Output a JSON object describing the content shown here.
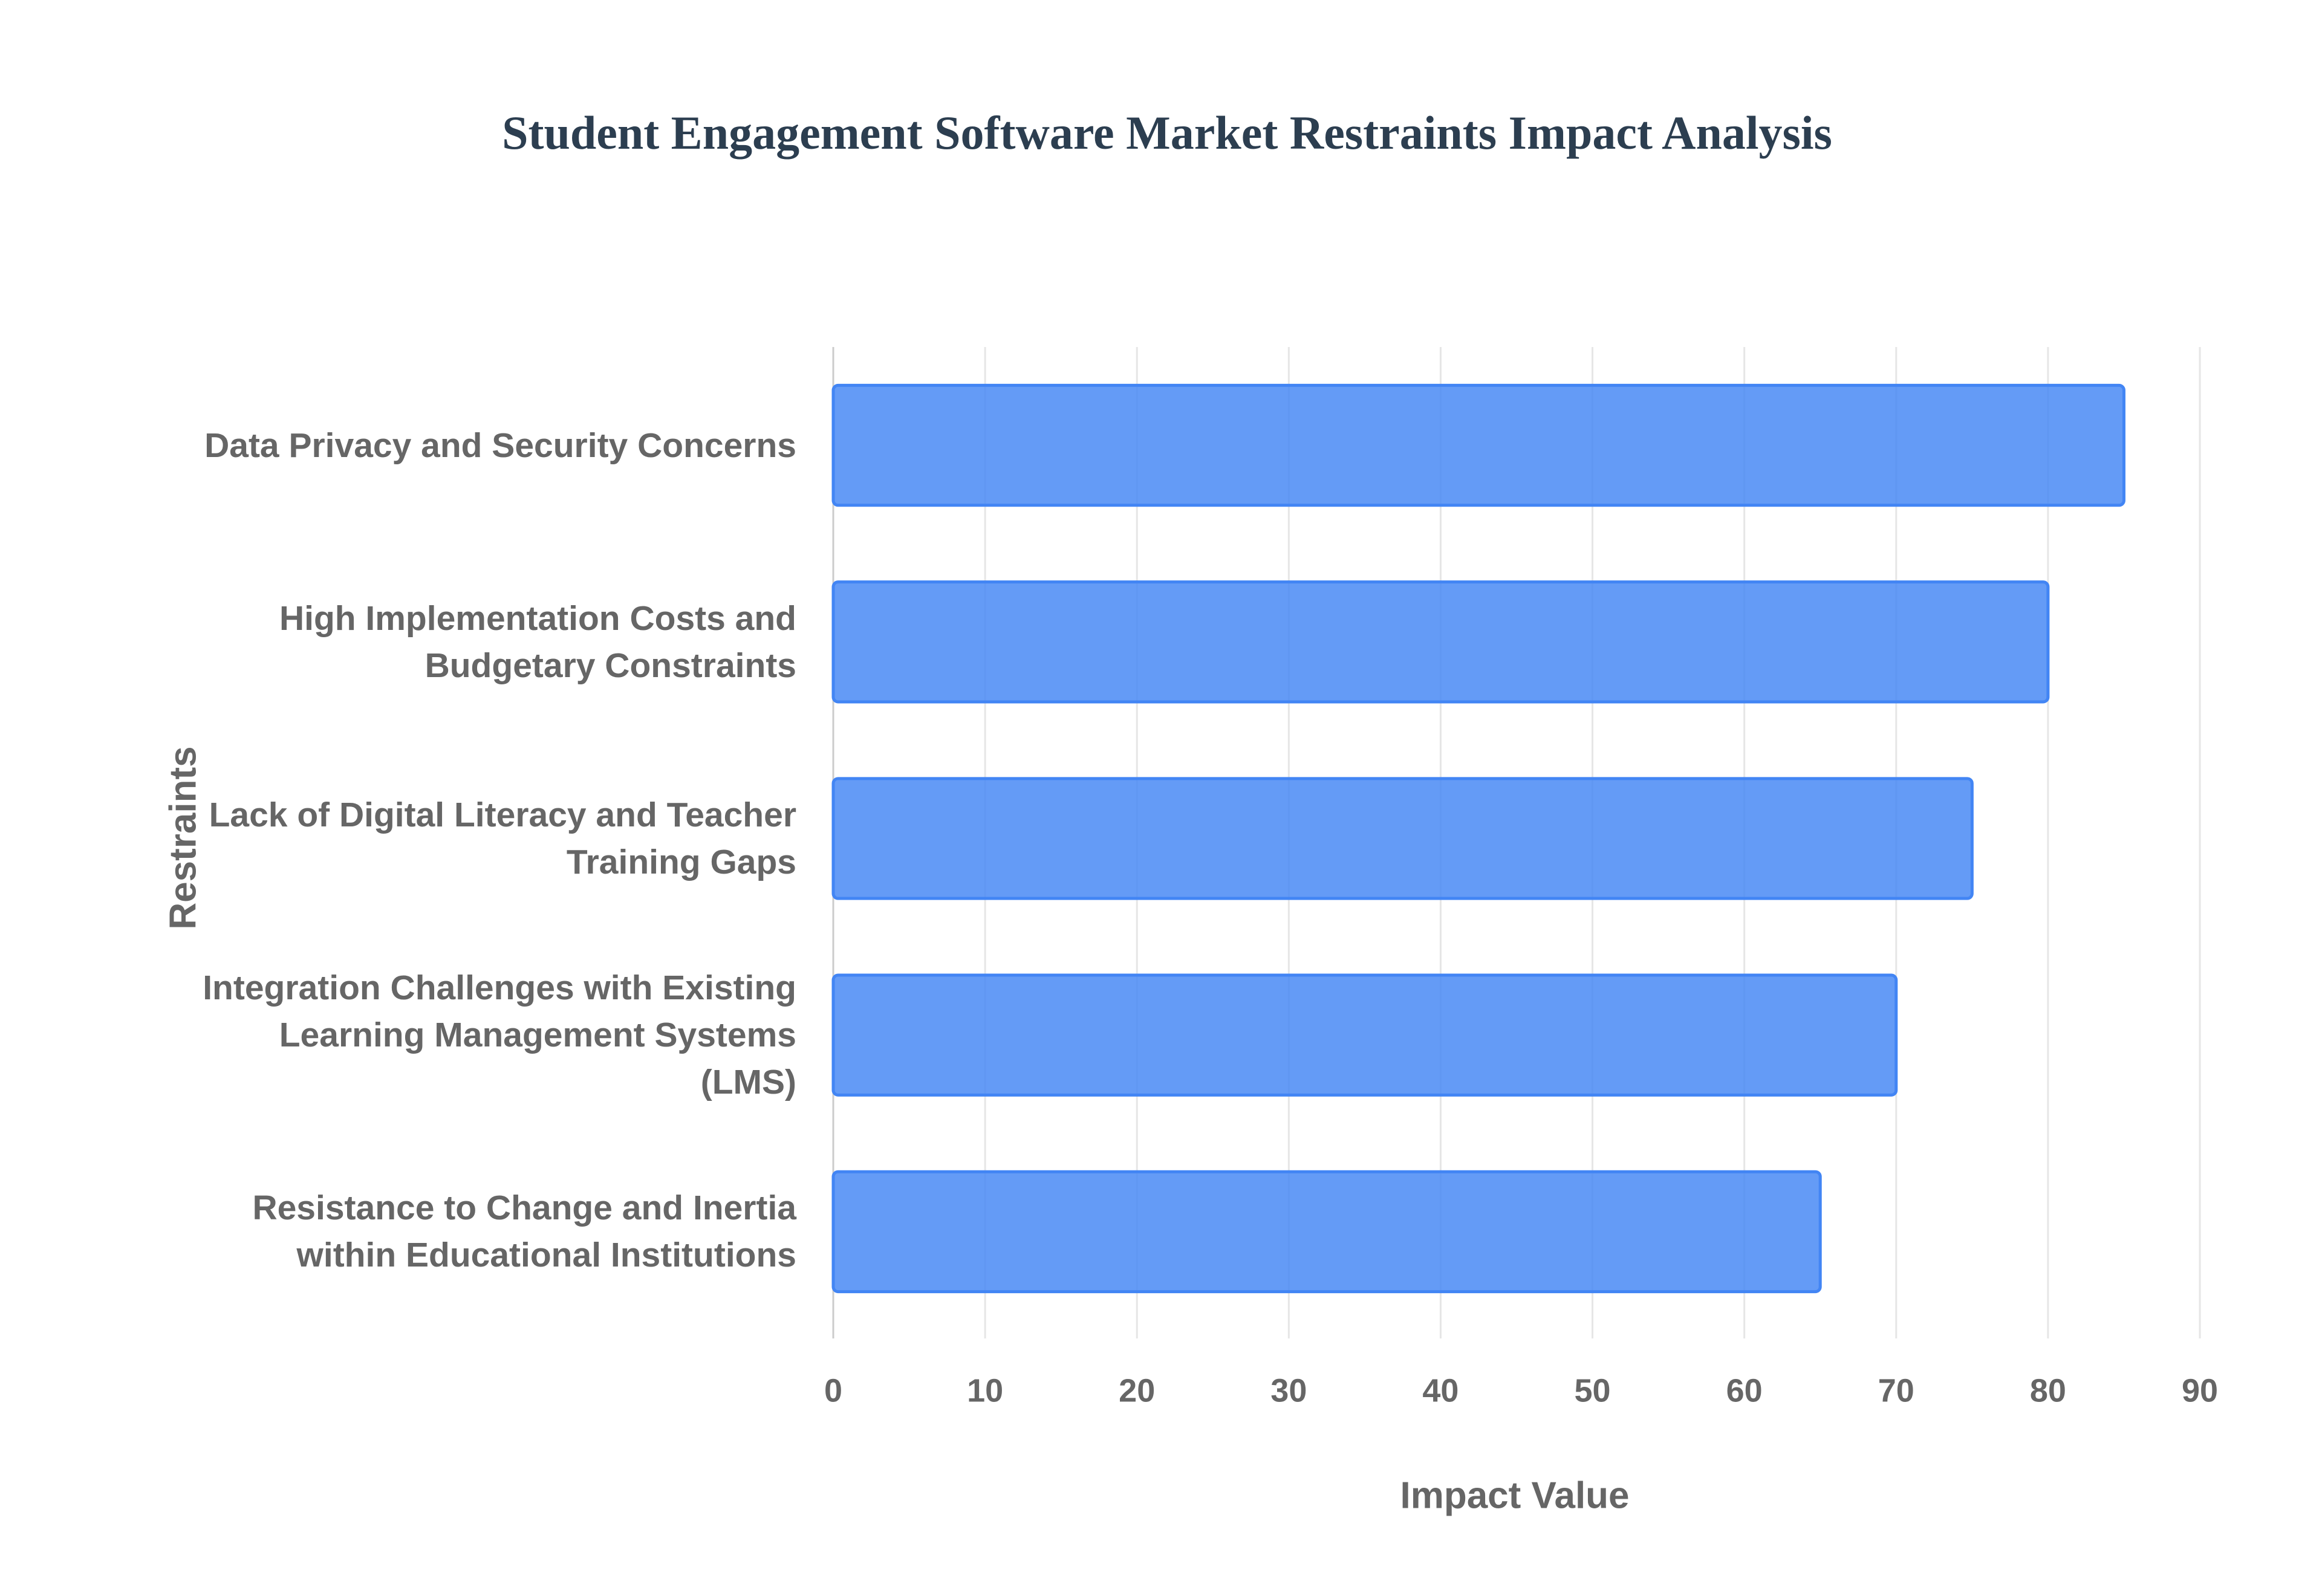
{
  "chart_data": {
    "type": "bar",
    "orientation": "horizontal",
    "title": "Student Engagement Software Market Restraints Impact Analysis",
    "x_label": "Impact Value",
    "y_label": "Restraints",
    "categories": [
      "Data Privacy and Security Concerns",
      "High Implementation Costs and Budgetary Constraints",
      "Lack of Digital Literacy and Teacher Training Gaps",
      "Integration Challenges with Existing Learning Management Systems (LMS)",
      "Resistance to Change and Inertia within Educational Institutions"
    ],
    "values": [
      85,
      80,
      75,
      70,
      65
    ],
    "color": "#4285f4",
    "xlim": [
      0,
      90
    ],
    "xticks": [
      0,
      10,
      20,
      30,
      40,
      50,
      60,
      70,
      80,
      90
    ],
    "grid": true
  }
}
